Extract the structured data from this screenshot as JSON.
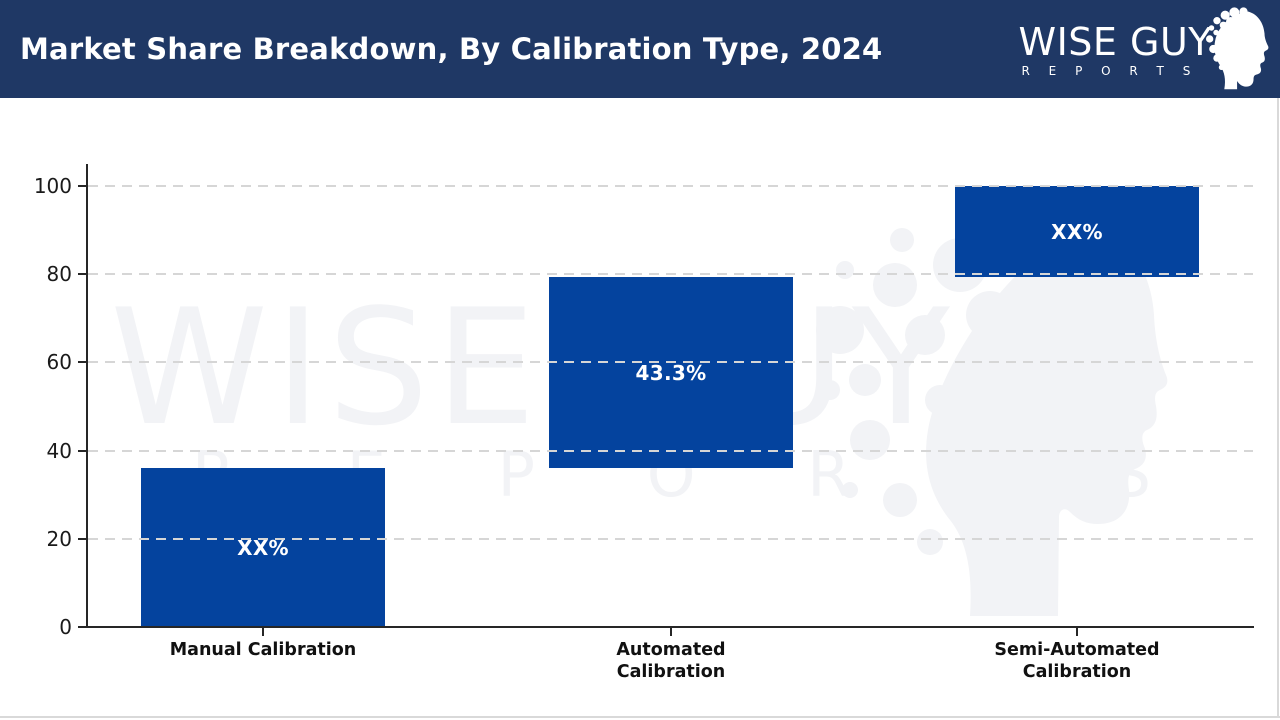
{
  "header": {
    "title": "Market Share Breakdown, By Calibration Type, 2024",
    "logo": {
      "name": "WISE GUY",
      "sub": "R E P O R T S"
    }
  },
  "watermark": {
    "big": "WISE GUY",
    "sub": "R E P O R T S"
  },
  "chart_data": {
    "type": "bar",
    "subtype": "waterfall-segments",
    "title": "Market Share Breakdown, By Calibration Type, 2024",
    "categories": [
      "Manual Calibration",
      "Automated\nCalibration",
      "Semi-Automated\nCalibration"
    ],
    "series": [
      {
        "name": "Market share (%)",
        "ranges": [
          [
            0,
            36
          ],
          [
            36,
            79.3
          ],
          [
            79.3,
            100
          ]
        ],
        "labels": [
          "XX%",
          "43.3%",
          "XX%"
        ]
      }
    ],
    "yticks": [
      0,
      20,
      40,
      60,
      80,
      100
    ],
    "ylim": [
      0,
      105
    ],
    "xlabel": "",
    "ylabel": "",
    "grid": "horizontal dashed",
    "legend": "none",
    "bar_color": "#04439e",
    "gridline_color": "#d6d6d6",
    "axis_color": "#262626"
  },
  "colors": {
    "header_bg": "#1f3865",
    "bar_blue": "#04439e",
    "watermark": "#f2f3f6",
    "edge_gray": "#d9d9d9"
  }
}
